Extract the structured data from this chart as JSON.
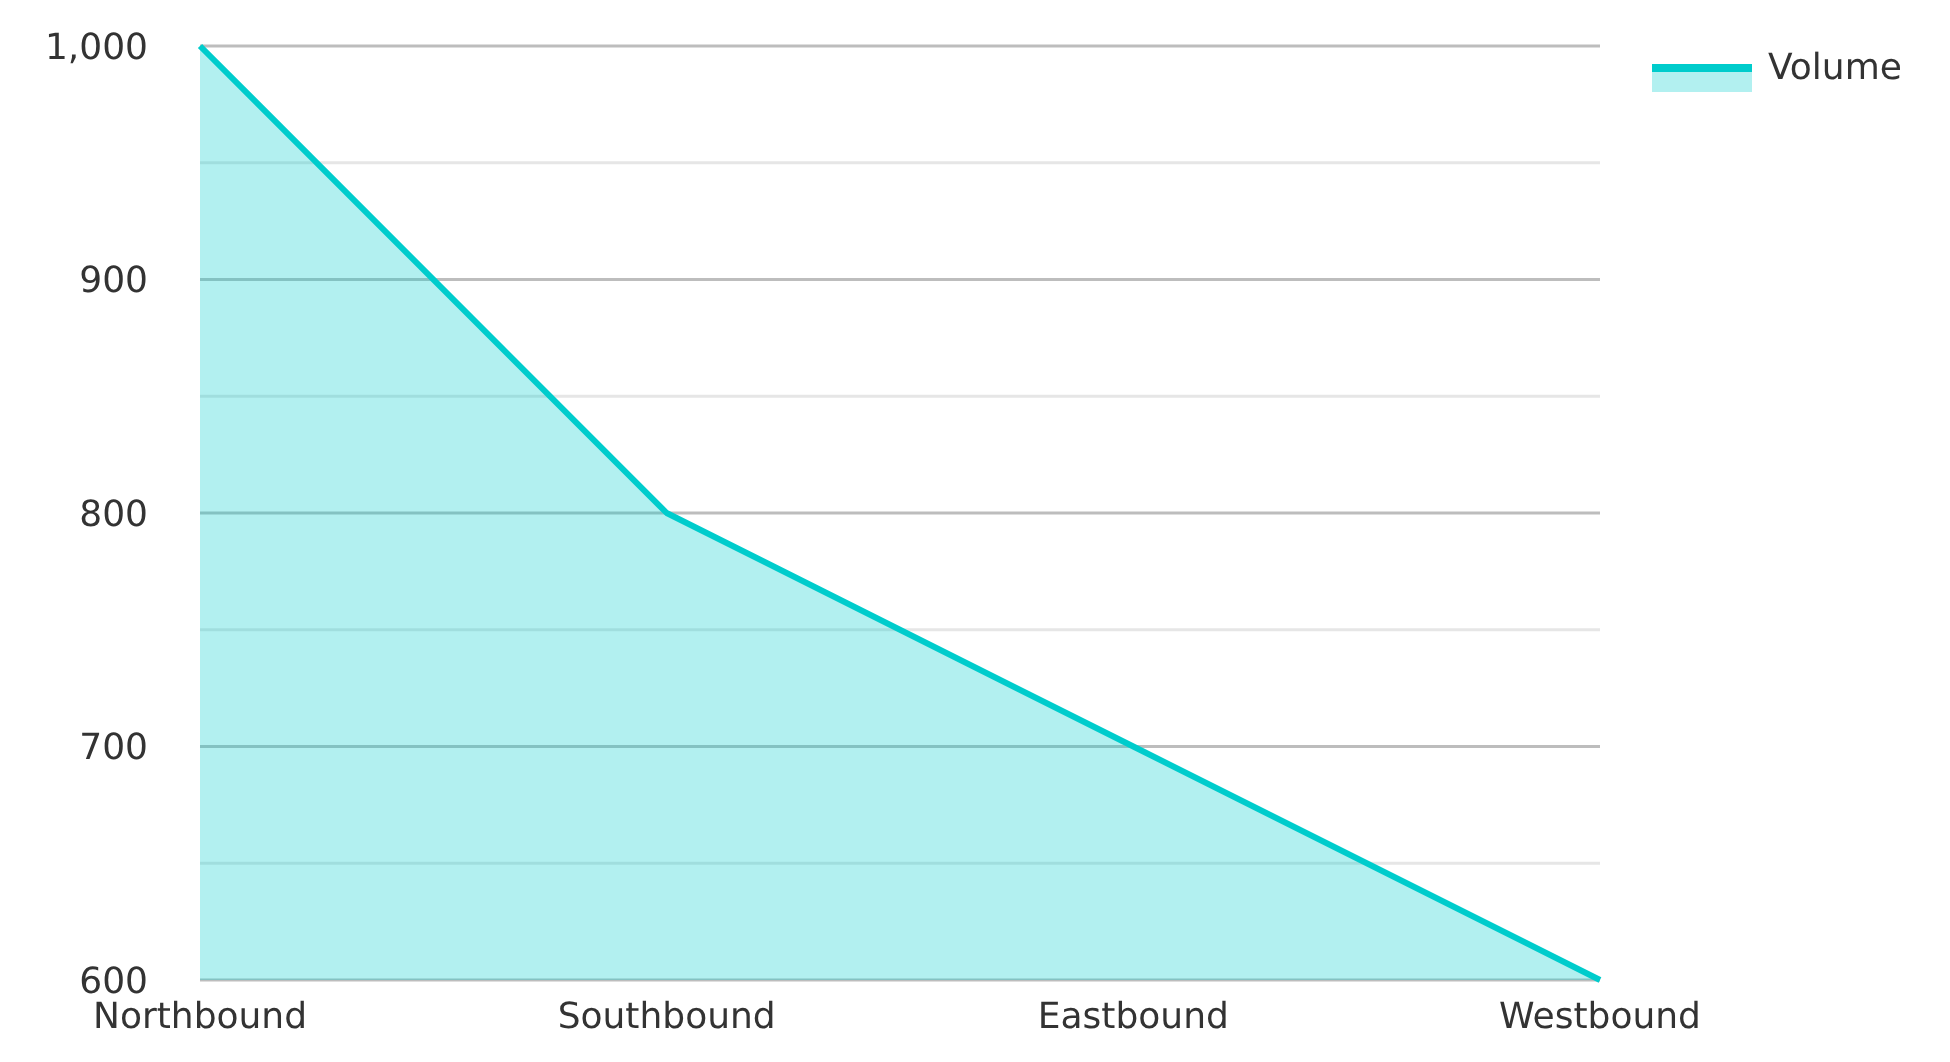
{
  "chart_data": {
    "type": "area",
    "categories": [
      "Northbound",
      "Southbound",
      "Eastbound",
      "Westbound"
    ],
    "series": [
      {
        "name": "Volume",
        "color": "#00cccc",
        "values": [
          1000,
          800,
          700,
          600
        ]
      }
    ],
    "ylim": [
      600,
      1000
    ],
    "yticks": [
      {
        "value": 600,
        "label": "600"
      },
      {
        "value": 650,
        "label": null
      },
      {
        "value": 700,
        "label": "700"
      },
      {
        "value": 750,
        "label": null
      },
      {
        "value": 800,
        "label": "800"
      },
      {
        "value": 850,
        "label": null
      },
      {
        "value": 900,
        "label": "900"
      },
      {
        "value": 950,
        "label": null
      },
      {
        "value": 1000,
        "label": "1,000"
      }
    ],
    "grid": true,
    "legend": "top right"
  }
}
